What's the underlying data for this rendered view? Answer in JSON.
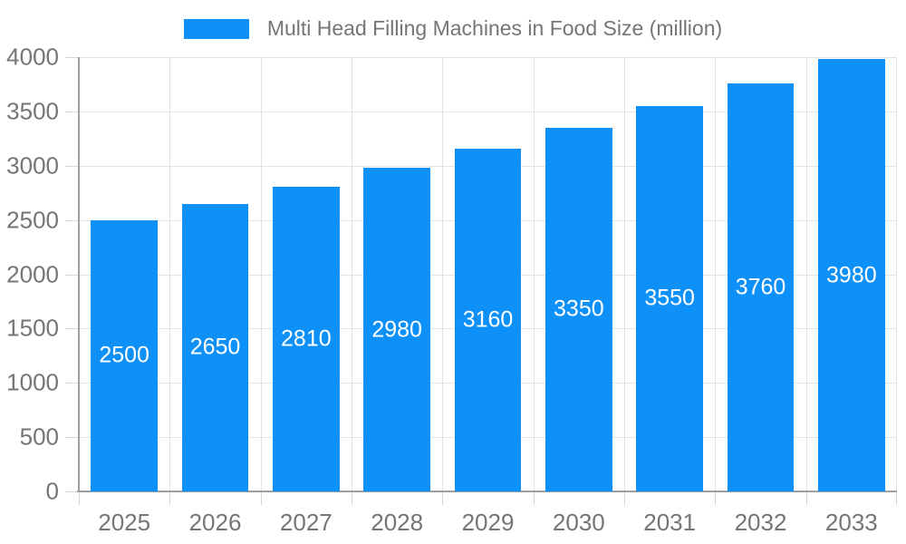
{
  "legend": {
    "label": "Multi Head Filling Machines in Food Size (million)"
  },
  "chart_data": {
    "type": "bar",
    "title": "Multi Head Filling Machines in Food Size (million)",
    "categories": [
      "2025",
      "2026",
      "2027",
      "2028",
      "2029",
      "2030",
      "2031",
      "2032",
      "2033"
    ],
    "values": [
      2500,
      2650,
      2810,
      2980,
      3160,
      3350,
      3550,
      3760,
      3980
    ],
    "xlabel": "",
    "ylabel": "",
    "ylim": [
      0,
      4000
    ],
    "ytick_step": 500,
    "yticks": [
      0,
      500,
      1000,
      1500,
      2000,
      2500,
      3000,
      3500,
      4000
    ],
    "legend_position": "top",
    "grid": true,
    "value_labels": "inside-center",
    "colors": {
      "bar": "#0e90f9",
      "grid": "#e3e3e3",
      "axis": "#9e9e9e",
      "tick_label": "#757575",
      "bar_label": "#ffffff",
      "background": "#ffffff"
    }
  }
}
